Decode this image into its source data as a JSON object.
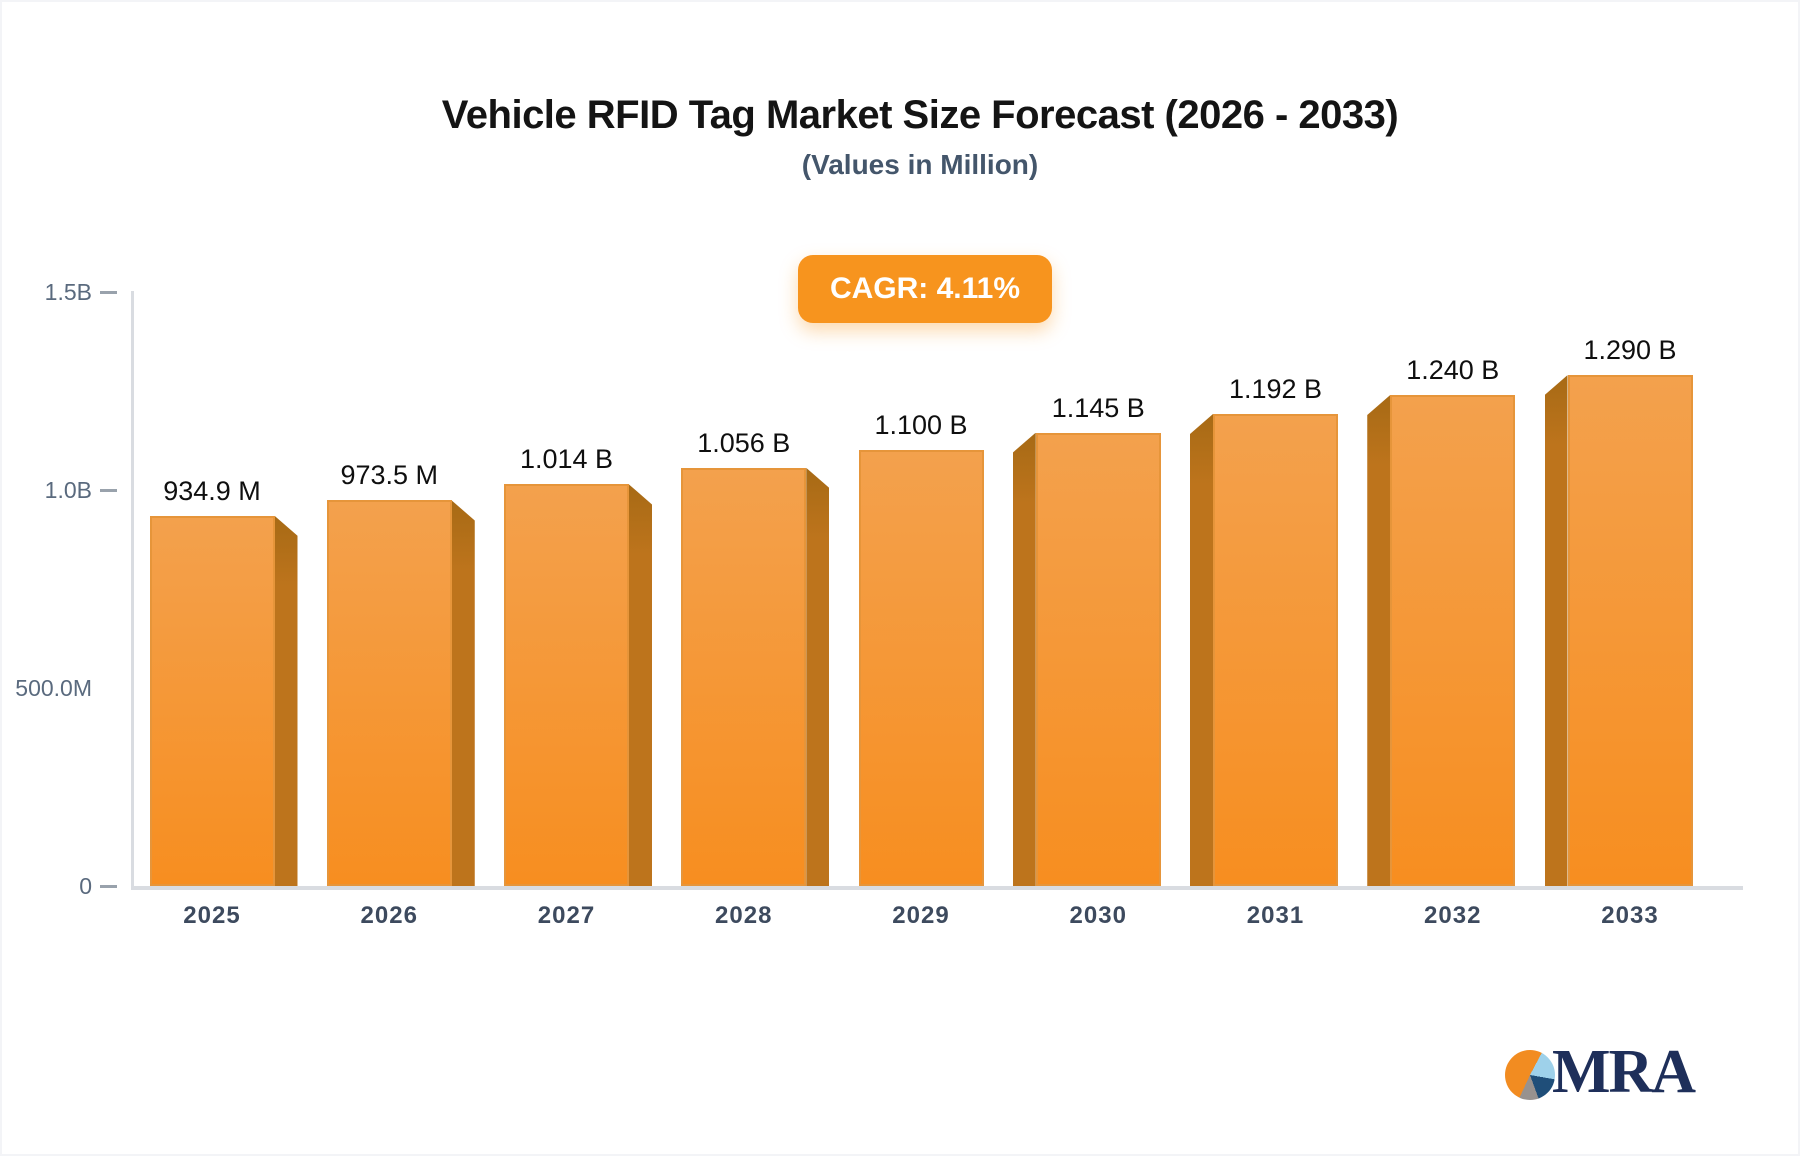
{
  "page": {
    "title": "Vehicle RFID Tag Market Size Forecast (2026 - 2033)",
    "subtitle": "(Values in Million)",
    "cagr_badge_label": "CAGR: 4.11%",
    "accent_color": "#f7941e"
  },
  "chart_data": {
    "type": "bar",
    "title": "Vehicle RFID Tag Market Size Forecast (2026 - 2033)",
    "subtitle": "(Values in Million)",
    "cagr_percent": 4.11,
    "categories": [
      "2025",
      "2026",
      "2027",
      "2028",
      "2029",
      "2030",
      "2031",
      "2032",
      "2033"
    ],
    "values_millions": [
      934.9,
      973.5,
      1014,
      1056,
      1100,
      1145,
      1192,
      1240,
      1290
    ],
    "value_labels": [
      "934.9 M",
      "973.5 M",
      "1.014 B",
      "1.056 B",
      "1.100 B",
      "1.145 B",
      "1.192 B",
      "1.240 B",
      "1.290 B"
    ],
    "ylim_millions": [
      0,
      1500
    ],
    "y_ticks": [
      {
        "label": "1.5B",
        "value_millions": 1500,
        "dash": true
      },
      {
        "label": "1.0B",
        "value_millions": 1000,
        "dash": true
      },
      {
        "label": "500.0M",
        "value_millions": 500,
        "dash": false
      },
      {
        "label": "0",
        "value_millions": 0,
        "dash": true
      }
    ],
    "grid": false,
    "legend": false,
    "bar_face_color": "#f7941e",
    "bar_side_color": "#bc741d",
    "style": "3d-perspective-bars"
  },
  "logo": {
    "text": "MRA",
    "pie_colors": [
      "#f28c21",
      "#9ed1ea",
      "#1f4e79",
      "#98928f"
    ]
  }
}
